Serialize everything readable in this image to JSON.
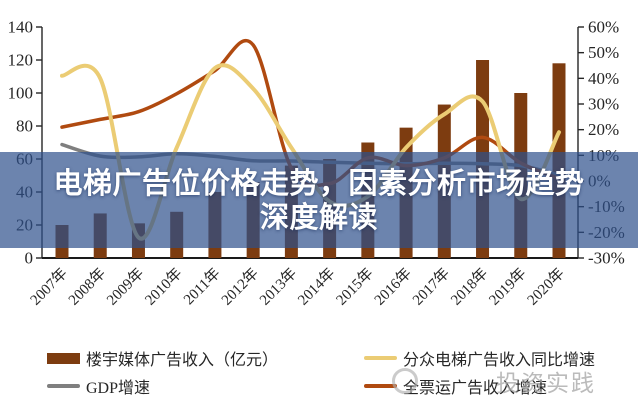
{
  "banner": {
    "line1": "电梯广告位价格走势，因素分析市场趋势",
    "line2": "深度解读"
  },
  "watermark": {
    "text": "投资实践"
  },
  "chart_data": {
    "type": "bar+line combo",
    "categories": [
      "2007年",
      "2008年",
      "2009年",
      "2010年",
      "2011年",
      "2012年",
      "2013年",
      "2014年",
      "2015年",
      "2016年",
      "2017年",
      "2018年",
      "2019年",
      "2020年"
    ],
    "series": [
      {
        "name": "楼宇媒体广告收入（亿元）",
        "type": "bar",
        "axis": "left",
        "color": "#7D3C10",
        "values": [
          20,
          27,
          21,
          28,
          40,
          46,
          56,
          60,
          70,
          79,
          93,
          120,
          100,
          118
        ]
      },
      {
        "name": "分众电梯广告收入同比增速",
        "type": "line",
        "axis": "right",
        "color": "#EBCC74",
        "values": [
          41,
          40,
          -22,
          13,
          44,
          36,
          13,
          -8,
          -6,
          13,
          26,
          31,
          -7,
          19
        ]
      },
      {
        "name": "GDP增速",
        "type": "line",
        "axis": "right",
        "color": "#7F7F7F",
        "values": [
          14.2,
          9.7,
          9.4,
          10.6,
          9.6,
          7.9,
          7.8,
          7.3,
          6.9,
          6.7,
          6.9,
          6.7,
          6.0,
          2.3
        ]
      },
      {
        "name": "全票运广告收入增速",
        "type": "line",
        "axis": "right",
        "color": "#B04A10",
        "values": [
          21,
          24,
          27,
          34,
          43,
          53,
          5,
          -1,
          9,
          6,
          9,
          17,
          7,
          1
        ]
      }
    ],
    "left_axis": {
      "min": 0,
      "max": 140,
      "step": 20,
      "suffix": ""
    },
    "right_axis": {
      "min": -30,
      "max": 60,
      "step": 10,
      "suffix": "%"
    },
    "grid": false,
    "legend_position": "bottom",
    "title": ""
  }
}
